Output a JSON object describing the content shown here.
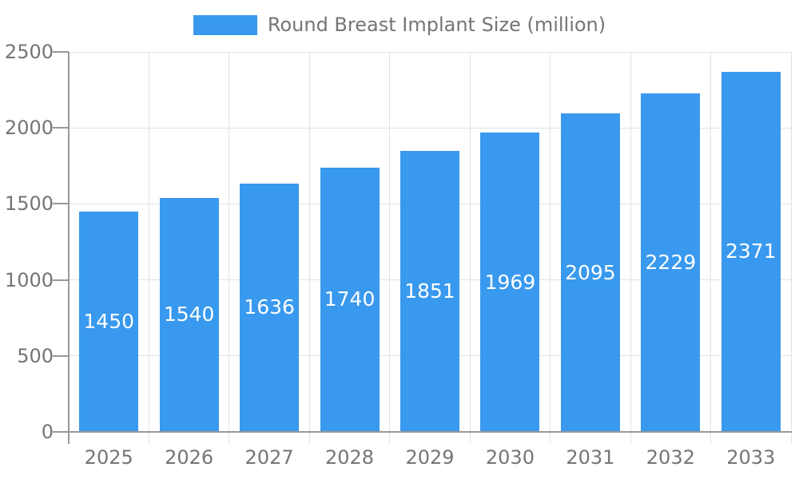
{
  "legend": {
    "label": "Round Breast Implant Size (million)"
  },
  "chart_data": {
    "type": "bar",
    "title": "Round Breast Implant Size (million)",
    "series": [
      {
        "name": "Round Breast Implant Size (million)",
        "values": [
          1450,
          1540,
          1636,
          1740,
          1851,
          1969,
          2095,
          2229,
          2371
        ]
      }
    ],
    "categories": [
      "2025",
      "2026",
      "2027",
      "2028",
      "2029",
      "2030",
      "2031",
      "2032",
      "2033"
    ],
    "xlabel": "",
    "ylabel": "",
    "ylim": [
      0,
      2500
    ],
    "yticks": [
      0,
      500,
      1000,
      1500,
      2000,
      2500
    ],
    "grid": true,
    "bar_value_labels_shown": true,
    "legend_position": "top-center",
    "colors": {
      "bar": "#3999EE",
      "bar_label": "#FFFFFF",
      "axis_text": "#757575",
      "grid_line": "#E2E2E2",
      "axis_line": "#999999"
    }
  }
}
